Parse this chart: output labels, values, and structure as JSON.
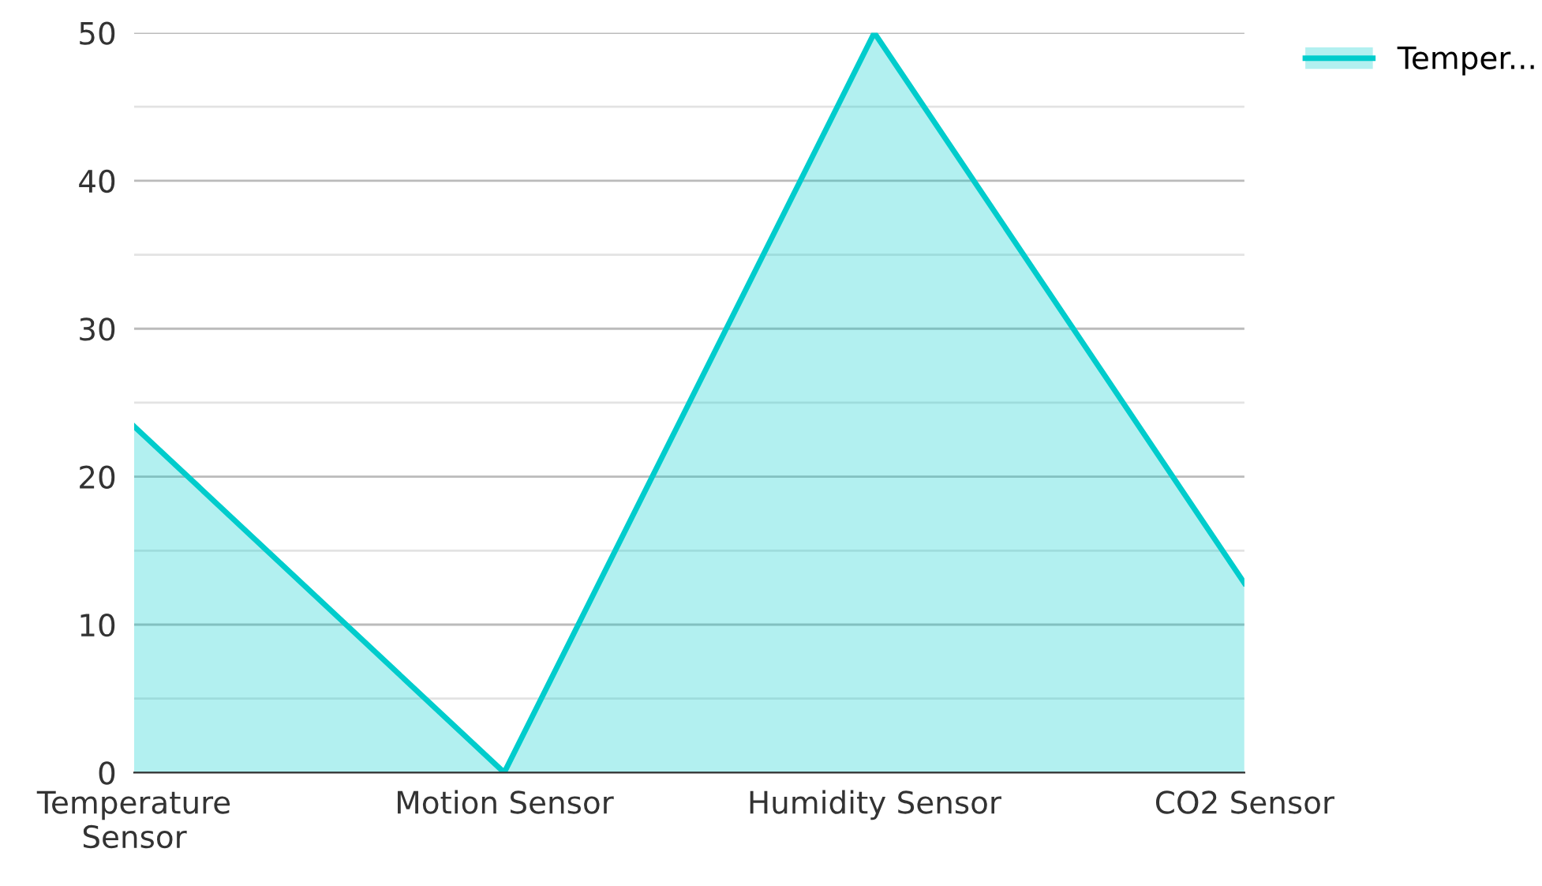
{
  "chart_data": {
    "type": "area",
    "categories": [
      "Temperature Sensor",
      "Motion Sensor",
      "Humidity Sensor",
      "CO2 Sensor"
    ],
    "series": [
      {
        "name": "Temper...",
        "color": "#00cccc",
        "values": [
          23.4,
          0,
          50,
          12.8
        ]
      }
    ],
    "ylim": [
      0,
      50
    ],
    "yticks": [
      0,
      {
        "value": 5,
        "label": null
      },
      10,
      {
        "value": 15,
        "label": null
      },
      20,
      {
        "value": 25,
        "label": null
      },
      30,
      {
        "value": 35,
        "label": null
      },
      40,
      {
        "value": 45,
        "label": null
      },
      50
    ],
    "grid": "y",
    "legend": "top right"
  }
}
